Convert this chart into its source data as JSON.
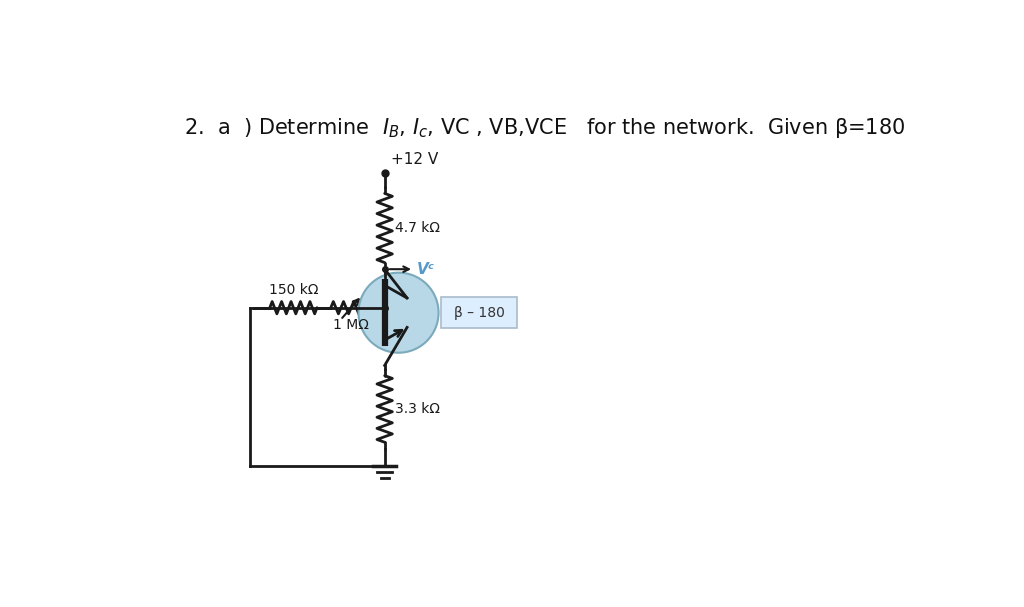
{
  "bg_color": "#ffffff",
  "wire_color": "#1a1a1a",
  "resistor_color": "#1a1a1a",
  "transistor_fill": "#b8d8e8",
  "transistor_edge": "#7aaabb",
  "vc_color": "#5599cc",
  "beta_box_fill": "#ddeeff",
  "beta_box_edge": "#aabbcc",
  "vcc_label": "+12 V",
  "rc_label": "4.7 kΩ",
  "rb1_label": "150 kΩ",
  "rb2_label": "1 MΩ",
  "re_label": "3.3 kΩ",
  "vc_label": "Vᶜ",
  "beta_label": "β – 180",
  "title_left": "2.  a  ) Determine  ",
  "title_right": " for the network.  Given β=180"
}
